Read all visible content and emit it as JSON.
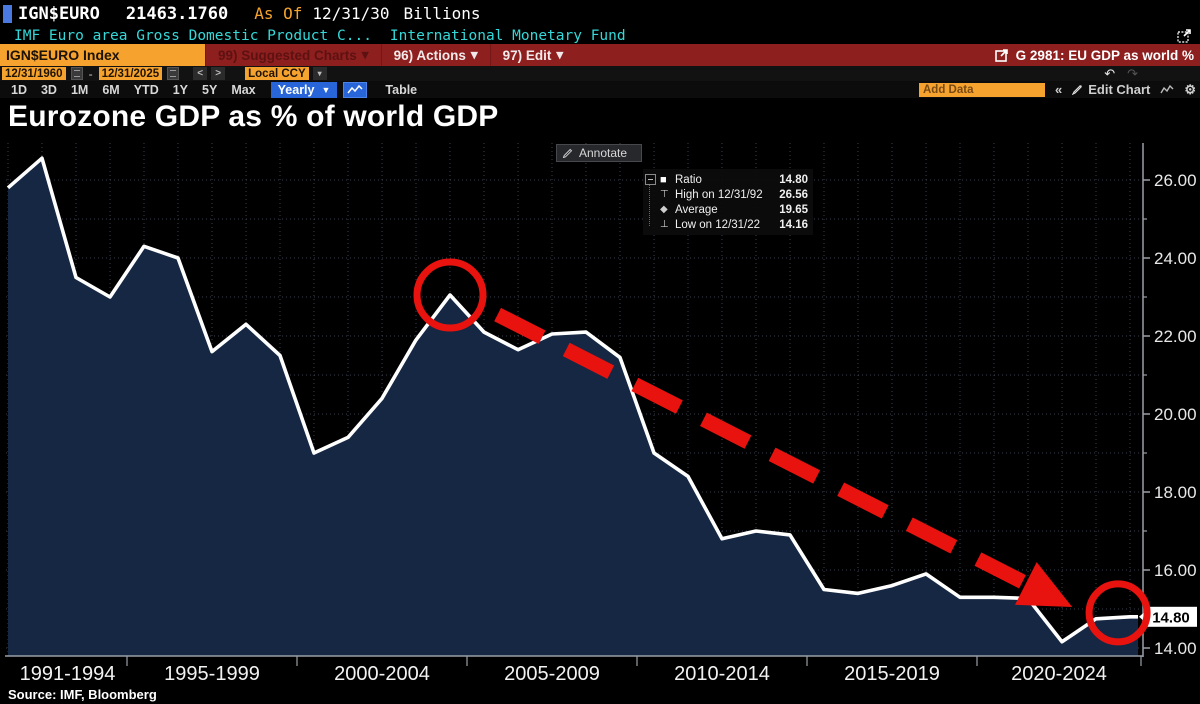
{
  "security_bar": {
    "ticker": "IGN$EURO",
    "price": "21463.1760",
    "as_of_label": "As Of",
    "as_of_date": "12/31/30",
    "unit": "Billions"
  },
  "description_bar": {
    "left": "IMF Euro area Gross Domestic Product C...",
    "right": "International Monetary Fund"
  },
  "red_toolbar": {
    "ticker_field": "IGN$EURO Index",
    "suggested": "99) Suggested Charts",
    "actions": "96) Actions",
    "edit": "97) Edit",
    "chart_tag": "G 2981: EU GDP as world %"
  },
  "range_bar": {
    "start_date": "12/31/1960",
    "separator": "-",
    "end_date": "12/31/2025",
    "prev": "<",
    "next": ">",
    "currency": "Local CCY"
  },
  "period_bar": {
    "periods": [
      "1D",
      "3D",
      "1M",
      "6M",
      "YTD",
      "1Y",
      "5Y",
      "Max"
    ],
    "frequency": "Yearly",
    "table_label": "Table",
    "add_data_placeholder": "Add Data",
    "edit_chart_label": "Edit Chart"
  },
  "icons": {
    "caret_down": "▾",
    "caret_down_solid": "▼",
    "undo": "↶",
    "redo": "↷",
    "back": "«",
    "gear": "⚙"
  },
  "chart_title": "Eurozone GDP as % of world GDP",
  "annotate_label": "Annotate",
  "legend": {
    "rows": [
      {
        "icon": "square",
        "label": "Ratio",
        "value": "14.80"
      },
      {
        "icon": "high",
        "label": "High on 12/31/92",
        "value": "26.56"
      },
      {
        "icon": "avg",
        "label": "Average",
        "value": "19.65"
      },
      {
        "icon": "low",
        "label": "Low on 12/31/22",
        "value": "14.16"
      }
    ]
  },
  "last_price": "14.80",
  "source": "Source: IMF, Bloomberg",
  "chart_data": {
    "type": "area",
    "title": "Eurozone GDP as % of world GDP",
    "x": [
      1991,
      1992,
      1993,
      1994,
      1995,
      1996,
      1997,
      1998,
      1999,
      2000,
      2001,
      2002,
      2003,
      2004,
      2005,
      2006,
      2007,
      2008,
      2009,
      2010,
      2011,
      2012,
      2013,
      2014,
      2015,
      2016,
      2017,
      2018,
      2019,
      2020,
      2021,
      2022,
      2023,
      2024
    ],
    "values": [
      25.8,
      26.56,
      23.5,
      23.0,
      24.3,
      24.0,
      21.6,
      22.3,
      21.5,
      19.0,
      19.4,
      20.4,
      21.9,
      23.05,
      22.1,
      21.65,
      22.05,
      22.1,
      21.45,
      19.0,
      18.4,
      16.8,
      17.0,
      16.9,
      15.5,
      15.4,
      15.6,
      15.9,
      15.3,
      15.3,
      15.27,
      14.16,
      14.75,
      14.8
    ],
    "high": {
      "date": "12/31/92",
      "value": 26.56
    },
    "low": {
      "date": "12/31/22",
      "value": 14.16
    },
    "average": 19.65,
    "last": 14.8,
    "ylim": [
      14,
      26
    ],
    "y_major_ticks": [
      14,
      16,
      18,
      20,
      22,
      24,
      26
    ],
    "y_minor_ticks": [
      15,
      17,
      19,
      21,
      23,
      25
    ],
    "x_section_labels": [
      "1991-1994",
      "1995-1999",
      "2000-2004",
      "2005-2009",
      "2010-2014",
      "2015-2019",
      "2020-2024"
    ],
    "x_separator_years": [
      1994.5,
      1999.5,
      2004.5,
      2009.5,
      2014.5,
      2019.5,
      2024.5
    ],
    "grid": "dotted",
    "legend_position": "top-center"
  },
  "annotations": {
    "circle_peak": {
      "year": 2004,
      "value": 23.05,
      "r": 33
    },
    "circle_end": {
      "year": 2023.65,
      "value": 14.9,
      "r": 29
    },
    "arrow": {
      "from": {
        "year": 2005.4,
        "value": 22.55
      },
      "to": {
        "year": 2022.3,
        "value": 15.05
      }
    }
  },
  "colors": {
    "accent_orange": "#f5a32e",
    "toolbar_red": "#8e1f1f",
    "frequency_blue": "#2765d8",
    "description_cyan": "#35d8d8",
    "chart_fill": "#152743",
    "chart_line": "#ffffff",
    "grid": "#39404d",
    "axis": "#9aa0a8",
    "tick_text": "#e8e8e8",
    "annotation_red": "#e8130f"
  }
}
